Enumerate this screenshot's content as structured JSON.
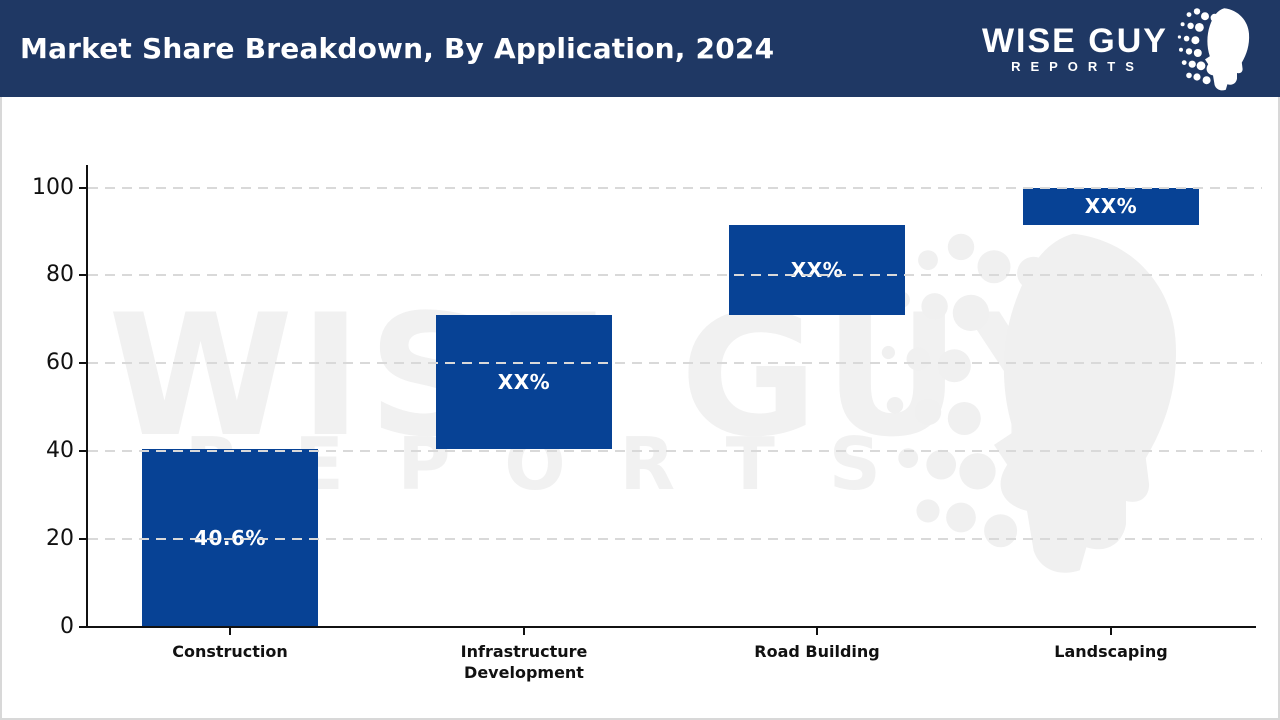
{
  "header": {
    "title": "Market Share Breakdown, By Application, 2024",
    "logo": {
      "line1": "WISE GUY",
      "line2": "REPORTS"
    }
  },
  "watermark": {
    "line1": "WISE GUY",
    "line2": "REPORTS"
  },
  "chart_data": {
    "type": "bar",
    "subtype": "floating-segment-waterfall",
    "title": "Market Share Breakdown, By Application, 2024",
    "categories": [
      "Construction",
      "Infrastructure Development",
      "Road Building",
      "Landscaping"
    ],
    "segments": [
      {
        "category": "Construction",
        "start": 0,
        "end": 40.6,
        "label": "40.6%"
      },
      {
        "category": "Infrastructure Development",
        "start": 40.6,
        "end": 71.0,
        "label": "XX%"
      },
      {
        "category": "Road Building",
        "start": 71.0,
        "end": 91.4,
        "label": "XX%"
      },
      {
        "category": "Landscaping",
        "start": 91.4,
        "end": 100.0,
        "label": "XX%"
      }
    ],
    "yticks": [
      0,
      20,
      40,
      60,
      80,
      100
    ],
    "ylim": [
      0,
      105
    ],
    "xlabel": "",
    "ylabel": "",
    "grid": "horizontal-dashed-over-bars",
    "legend": "none",
    "colors": {
      "bar": "#074295",
      "bar_label": "#ffffff",
      "axis": "#111111",
      "gridline": "#d9d9d9",
      "header_bg": "#1f3864",
      "watermark": "#f1f1f1"
    }
  }
}
